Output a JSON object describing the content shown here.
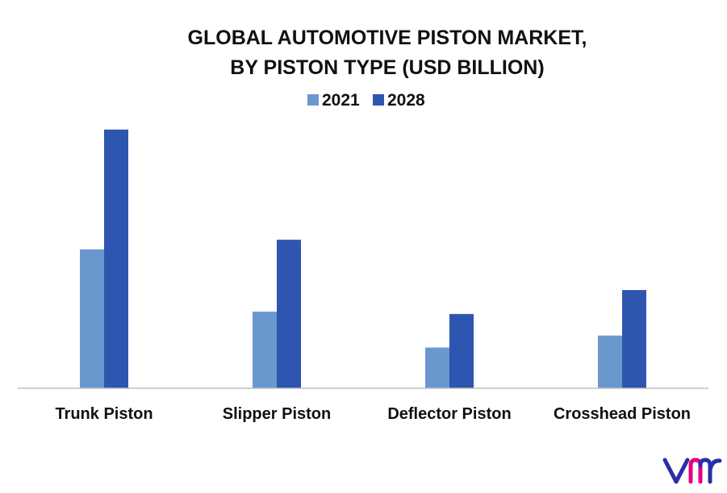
{
  "chart_data": {
    "type": "bar",
    "title": [
      "GLOBAL AUTOMOTIVE PISTON MARKET,",
      "BY PISTON TYPE (USD BILLION)"
    ],
    "categories": [
      "Trunk Piston",
      "Slipper Piston",
      "Deflector Piston",
      "Crosshead Piston"
    ],
    "series": [
      {
        "name": "2021",
        "color": "#6b97cf",
        "values": [
          5.8,
          3.2,
          1.7,
          2.2
        ]
      },
      {
        "name": "2028",
        "color": "#2e55b0",
        "values": [
          10.8,
          6.2,
          3.1,
          4.1
        ]
      }
    ],
    "ylim": [
      0,
      11.5
    ],
    "grid": false,
    "legend_position": "top-center",
    "xlabel": "",
    "ylabel": ""
  },
  "logo": {
    "text": "vmr",
    "icon": "vmr-logo-icon",
    "color_a": "#2a2fa8",
    "color_b": "#e4007f"
  }
}
